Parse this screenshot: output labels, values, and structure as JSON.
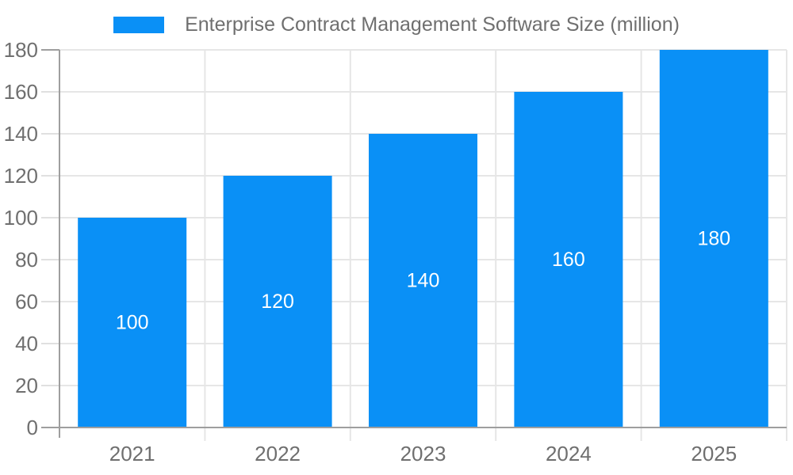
{
  "chart_data": {
    "type": "bar",
    "title": "Enterprise Contract Management Software Size (million)",
    "categories": [
      "2021",
      "2022",
      "2023",
      "2024",
      "2025"
    ],
    "values": [
      100,
      120,
      140,
      160,
      180
    ],
    "series": [
      {
        "name": "Enterprise Contract Management Software Size (million)",
        "values": [
          100,
          120,
          140,
          160,
          180
        ]
      }
    ],
    "xlabel": "",
    "ylabel": "",
    "ylim": [
      0,
      180
    ],
    "yticks": [
      0,
      20,
      40,
      60,
      80,
      100,
      120,
      140,
      160,
      180
    ],
    "grid": true,
    "legend_position": "top",
    "bar_label_position": "center",
    "colors": {
      "bar": "#0A90F6",
      "bar_label": "#FFFFFF",
      "axis_label": "#6F6F6F",
      "grid_line": "#E6E6E6",
      "minor_tick": "#E0E0E0",
      "axis_line": "#9E9E9E",
      "background": "#FFFFFF"
    }
  }
}
